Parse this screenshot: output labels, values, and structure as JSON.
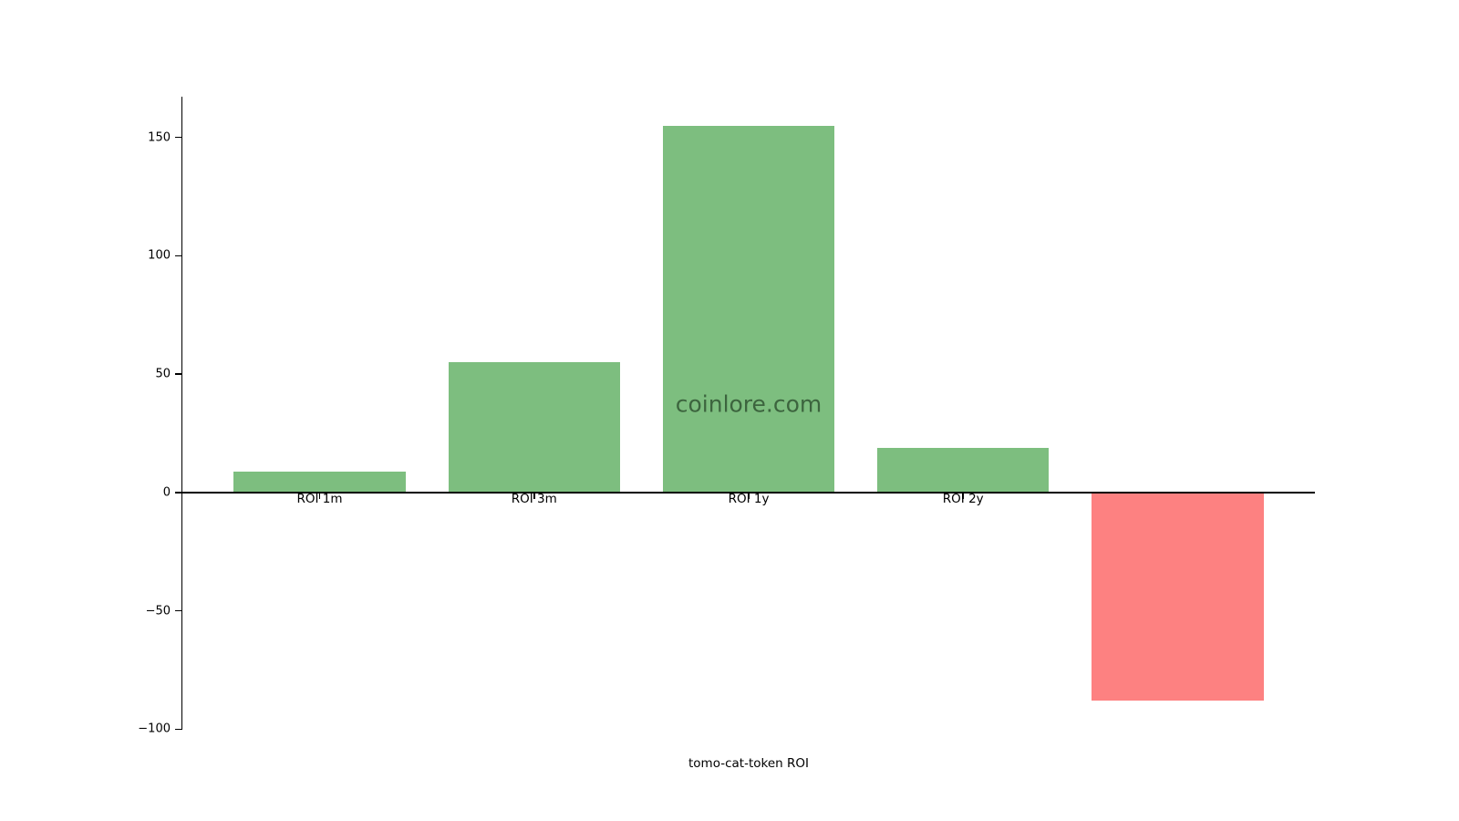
{
  "figure": {
    "background": "#ffffff"
  },
  "chart_data": {
    "type": "bar",
    "title": "",
    "xlabel": "tomo-cat-token ROI",
    "ylabel": "",
    "categories": [
      "ROI 1m",
      "ROI 3m",
      "ROI 1y",
      "ROI 2y",
      ""
    ],
    "values": [
      9,
      55,
      155,
      19,
      -88
    ],
    "positive_color": "#7dbe7f",
    "negative_color": "#fd8181",
    "axis_color": "#000000",
    "y_ticks": [
      150,
      100,
      50,
      0,
      -50,
      -100
    ],
    "y_tick_labels": [
      "150",
      "100",
      "50",
      "0",
      "−50",
      "−100"
    ],
    "ylim": [
      -100.15,
      167.15
    ],
    "grid": false,
    "legend": null,
    "watermark": "coinlore.com"
  }
}
